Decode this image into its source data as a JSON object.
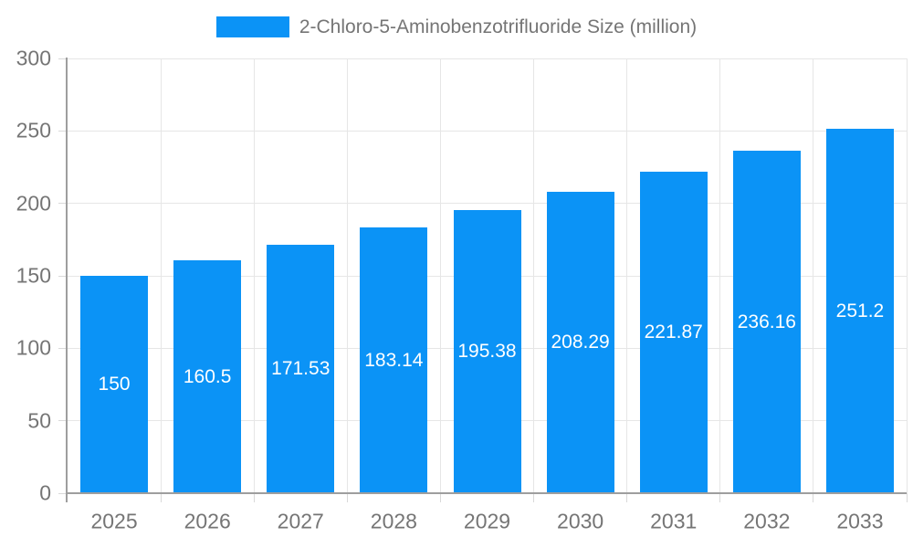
{
  "chart_data": {
    "type": "bar",
    "title": "",
    "legend": {
      "label": "2-Chloro-5-Aminobenzotrifluoride Size (million)",
      "position": "top"
    },
    "categories": [
      "2025",
      "2026",
      "2027",
      "2028",
      "2029",
      "2030",
      "2031",
      "2032",
      "2033"
    ],
    "values": [
      150,
      160.5,
      171.53,
      183.14,
      195.38,
      208.29,
      221.87,
      236.16,
      251.2
    ],
    "value_labels": [
      "150",
      "160.5",
      "171.53",
      "183.14",
      "195.38",
      "208.29",
      "221.87",
      "236.16",
      "251.2"
    ],
    "xlabel": "",
    "ylabel": "",
    "ylim": [
      0,
      300
    ],
    "yticks": [
      0,
      50,
      100,
      150,
      200,
      250,
      300
    ],
    "grid": true,
    "legend_position": "top",
    "colors": {
      "bar": "#0b93f6",
      "axis": "#9e9e9e",
      "gridline": "#e6e6e6",
      "tick": "#d9d9d9",
      "axis_text": "#757575",
      "legend_text": "#757575",
      "value_text": "#ffffff",
      "background": "#ffffff"
    }
  }
}
